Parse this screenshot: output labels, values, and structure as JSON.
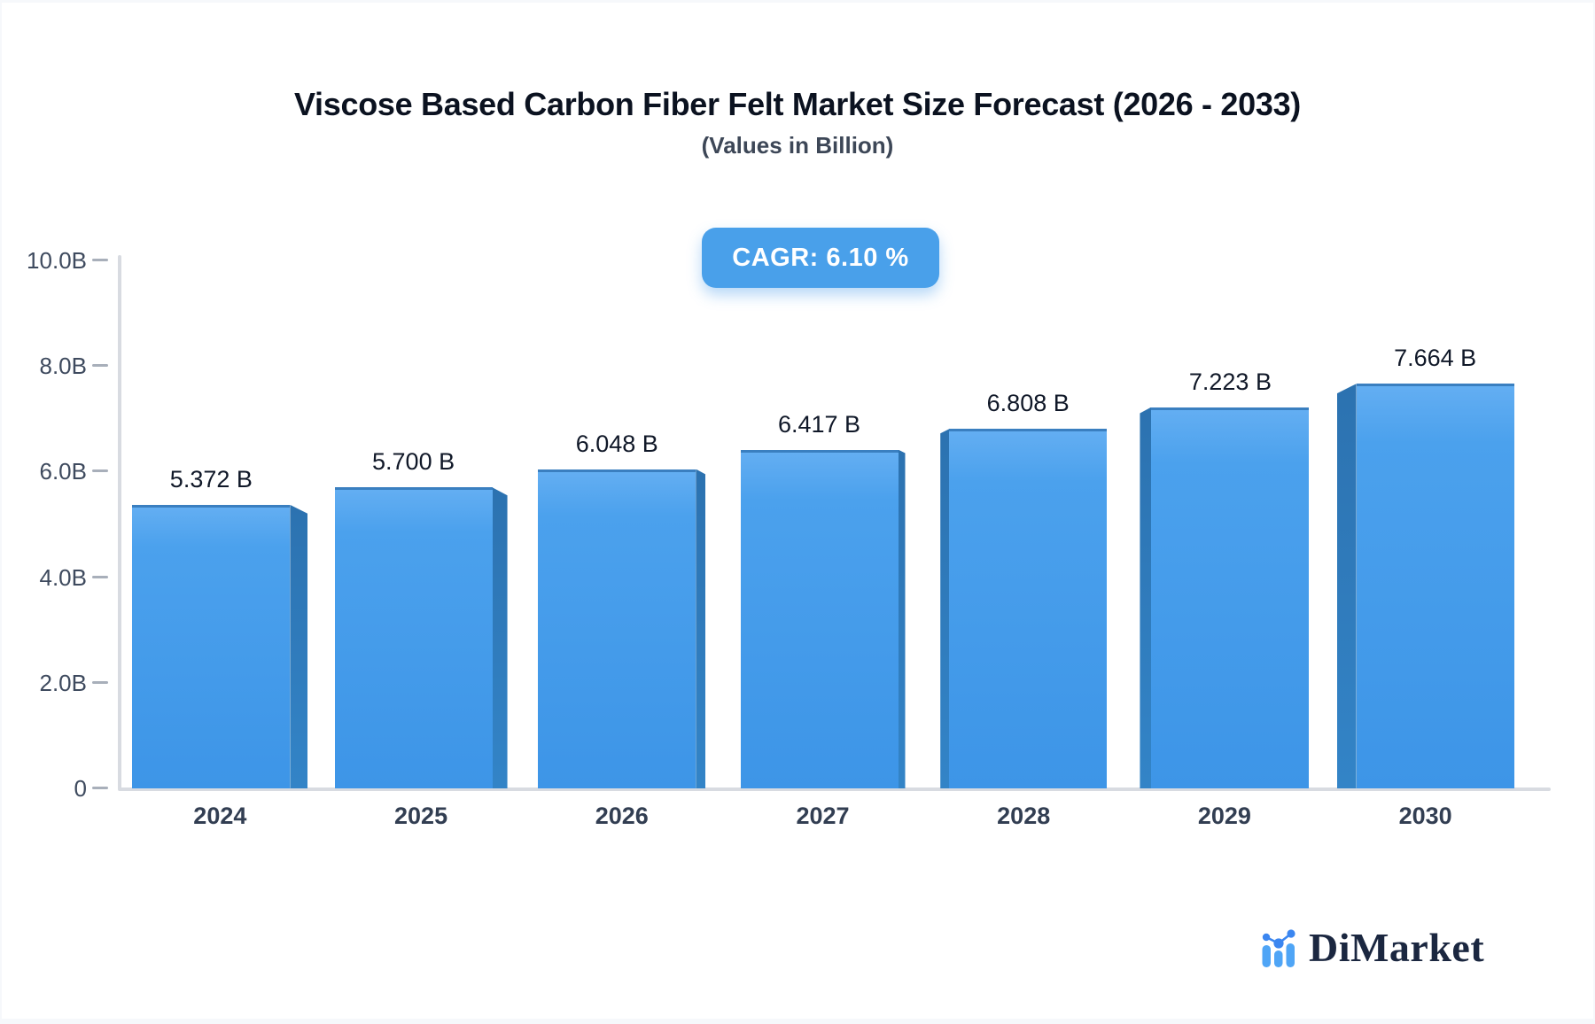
{
  "page": {
    "background": "#f6f8fb",
    "card_background": "#ffffff"
  },
  "header": {
    "title": "Viscose Based Carbon Fiber Felt Market Size Forecast (2026 - 2033)",
    "subtitle": "(Values in Billion)"
  },
  "badge": {
    "label": "CAGR: 6.10 %",
    "background": "#49a0ea",
    "text_color": "#ffffff"
  },
  "chart_data": {
    "type": "bar",
    "title": "Viscose Based Carbon Fiber Felt Market Size Forecast (2026 - 2033)",
    "subtitle": "(Values in Billion)",
    "cagr_label": "CAGR: 6.10 %",
    "categories": [
      "2024",
      "2025",
      "2026",
      "2027",
      "2028",
      "2029",
      "2030"
    ],
    "values": [
      5.372,
      5.7,
      6.048,
      6.417,
      6.808,
      7.223,
      7.664
    ],
    "value_labels": [
      "5.372 B",
      "5.700 B",
      "6.048 B",
      "6.417 B",
      "6.808 B",
      "7.223 B",
      "7.664 B"
    ],
    "xlabel": "",
    "ylabel": "",
    "ylim": [
      0,
      10
    ],
    "yticks": [
      {
        "value": 0,
        "label": "0"
      },
      {
        "value": 2,
        "label": "2.0B"
      },
      {
        "value": 4,
        "label": "4.0B"
      },
      {
        "value": 6,
        "label": "6.0B"
      },
      {
        "value": 8,
        "label": "8.0B"
      },
      {
        "value": 10,
        "label": "10.0B"
      }
    ],
    "grid": false,
    "legend": false,
    "style": {
      "bar_face_top_color": "#63aef2",
      "bar_face_color": "#4ba1ed",
      "bar_face_bottom_color": "#3d95e7",
      "bar_top_edge_color": "#3a7fc0",
      "bar_side_dark_color": "#2c72b0",
      "bar_side_light_color": "#3384c7",
      "axis_line_color": "#d8dbe1",
      "tick_dash_color": "#a8afba",
      "tick_label_color": "#3e4a5e",
      "category_label_color": "#323e52",
      "value_label_color": "#101828"
    }
  },
  "branding": {
    "name": "DiMarket",
    "icon": "dimarket-bars-logo-icon",
    "icon_bar_color": "#4fa5f6",
    "icon_dot_color": "#3b86f0",
    "text_color": "#1b2740"
  }
}
